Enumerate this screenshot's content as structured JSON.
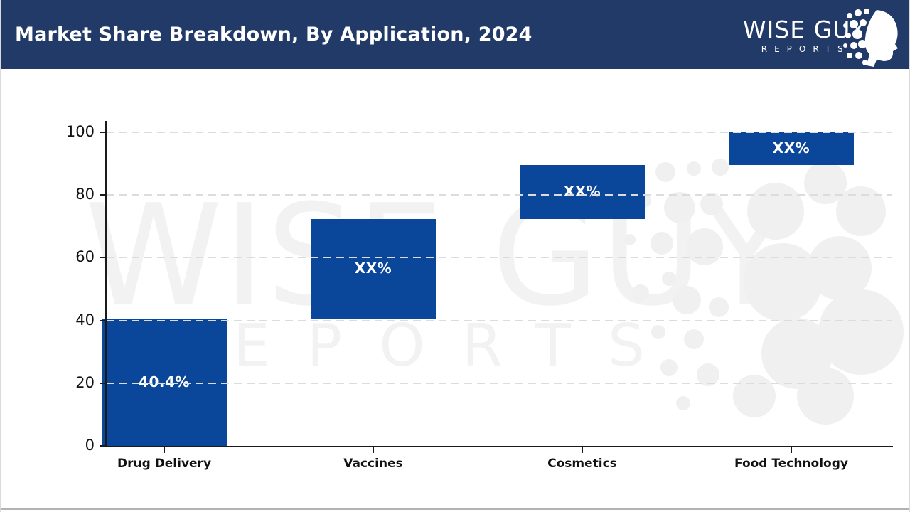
{
  "header": {
    "title": "Market Share Breakdown, By Application, 2024",
    "bg_color": "#213a68",
    "logo": {
      "line1": "WISE GUY",
      "line2": "REPORTS"
    }
  },
  "watermark": {
    "line1": "WISE GUY",
    "line2": "REPORTS"
  },
  "chart_data": {
    "type": "bar",
    "subtype": "waterfall",
    "title": "Market Share Breakdown, By Application, 2024",
    "categories": [
      "Drug Delivery",
      "Vaccines",
      "Cosmetics",
      "Food Technology"
    ],
    "series": [
      {
        "name": "Market Share",
        "segments": [
          {
            "category": "Drug Delivery",
            "start": 0,
            "end": 40.4,
            "label": "40.4%"
          },
          {
            "category": "Vaccines",
            "start": 40.4,
            "end": 72.3,
            "label": "XX%"
          },
          {
            "category": "Cosmetics",
            "start": 72.3,
            "end": 89.5,
            "label": "XX%"
          },
          {
            "category": "Food Technology",
            "start": 89.5,
            "end": 100,
            "label": "XX%"
          }
        ]
      }
    ],
    "xlabel": "",
    "ylabel": "",
    "y_ticks": [
      0,
      20,
      40,
      60,
      80,
      100
    ],
    "ylim": [
      0,
      103
    ],
    "grid": "horizontal dashed",
    "legend": "none",
    "bar_color": "#0a4699",
    "bar_label_color": "#ffffff",
    "gridline_color": "#dcdcdc",
    "axis_color": "#1a1a1a"
  }
}
